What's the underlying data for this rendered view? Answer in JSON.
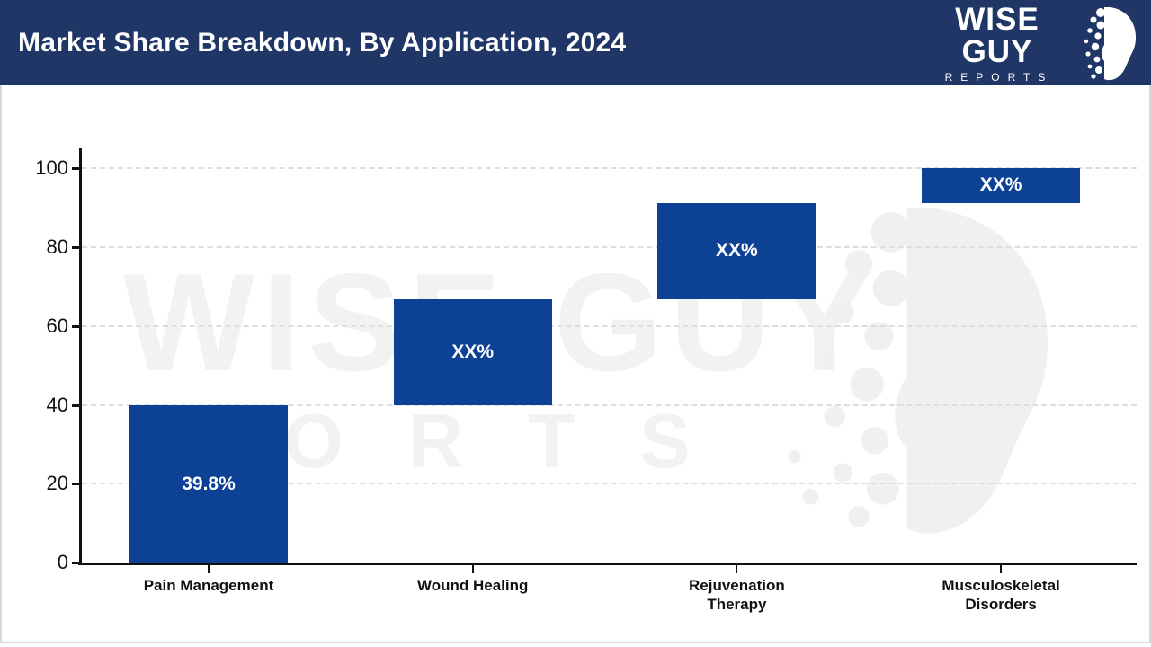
{
  "header": {
    "title": "Market Share Breakdown, By Application, 2024",
    "brand": {
      "line1": "WISE GUY",
      "line2": "REPORTS"
    }
  },
  "watermark": {
    "line1": "WISE GUY",
    "line2": "PORTS"
  },
  "colors": {
    "header_bg": "#203666",
    "bar": "#0d4196",
    "axis": "#111111",
    "grid": "#dedede",
    "page_border": "#d9d9d9",
    "value_label": "#ffffff",
    "watermark": "#f2f2f2"
  },
  "chart_data": {
    "type": "bar",
    "subtype": "waterfall-stacked-breakdown",
    "title": "Market Share Breakdown, By Application, 2024",
    "xlabel": "",
    "ylabel": "",
    "ylim": [
      0,
      105
    ],
    "yticks": [
      0,
      20,
      40,
      60,
      80,
      100
    ],
    "grid": "horizontal dashed",
    "legend": "none",
    "categories": [
      "Pain Management",
      "Wound Healing",
      "Rejuvenation\nTherapy",
      "Musculoskeletal\nDisorders"
    ],
    "segments": [
      {
        "category": "Pain Management",
        "start": 0,
        "end": 39.8,
        "value": 39.8,
        "label": "39.8%"
      },
      {
        "category": "Wound Healing",
        "start": 39.8,
        "end": 66.7,
        "value": 26.9,
        "label": "XX%"
      },
      {
        "category": "Rejuvenation Therapy",
        "start": 66.7,
        "end": 91.3,
        "value": 24.6,
        "label": "XX%"
      },
      {
        "category": "Musculoskeletal Disorders",
        "start": 91.3,
        "end": 100,
        "value": 8.7,
        "label": "XX%"
      }
    ]
  }
}
